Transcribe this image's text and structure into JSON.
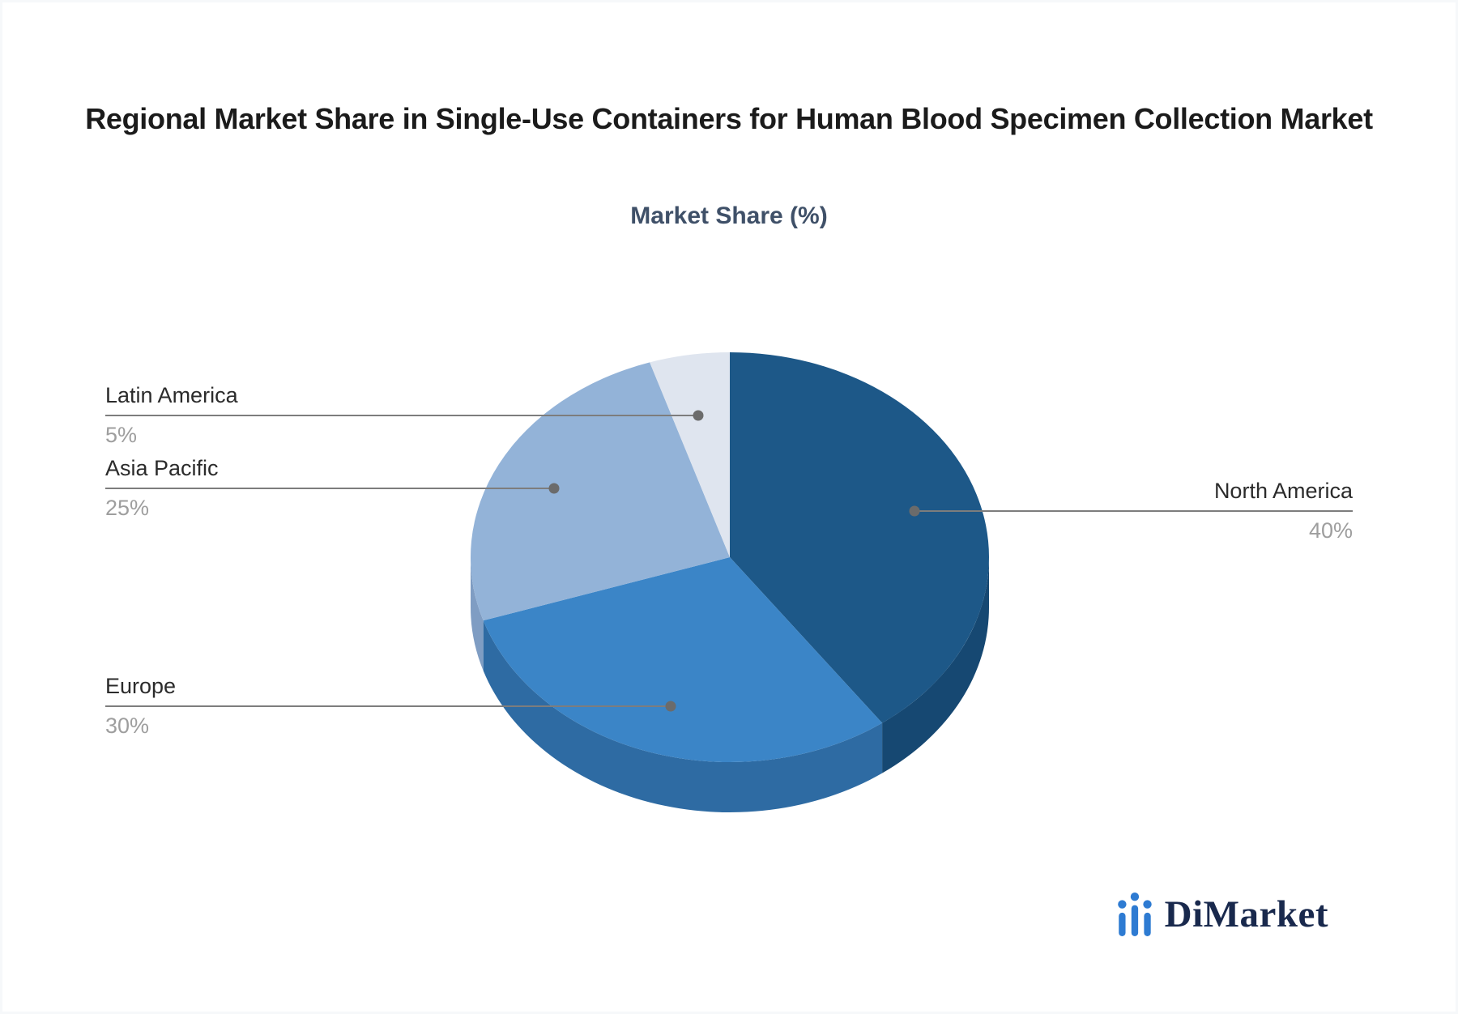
{
  "title": {
    "text": "Regional Market Share in Single-Use Containers for Human Blood Specimen Collection Market"
  },
  "chart_data": {
    "type": "pie",
    "title": "Regional Market Share in Single-Use Containers for Human Blood Specimen Collection Market",
    "subtitle": "Market Share (%)",
    "unit": "%",
    "effect_3d": true,
    "start_angle_deg": 0,
    "direction": "clockwise",
    "slices": [
      {
        "label": "North America",
        "value": 40,
        "display": "40%",
        "color": "#1d5888",
        "side_color": "#164872"
      },
      {
        "label": "Europe",
        "value": 30,
        "display": "30%",
        "color": "#3b85c7",
        "side_color": "#2e6ba3"
      },
      {
        "label": "Asia Pacific",
        "value": 25,
        "display": "25%",
        "color": "#93b3d8",
        "side_color": "#7f9dc3"
      },
      {
        "label": "Latin America",
        "value": 5,
        "display": "5%",
        "color": "#dfe5ef",
        "side_color": "#c2cdde"
      }
    ],
    "leader_line_color": "#7d7d7d",
    "leader_dot_color": "#6b6b6b",
    "label_color": "#2b2b2b",
    "value_color": "#9e9e9e"
  },
  "branding": {
    "logo_text": "DiMarket",
    "logo_text_color": "#19294d",
    "logo_icon_color": "#2e7bd2"
  }
}
